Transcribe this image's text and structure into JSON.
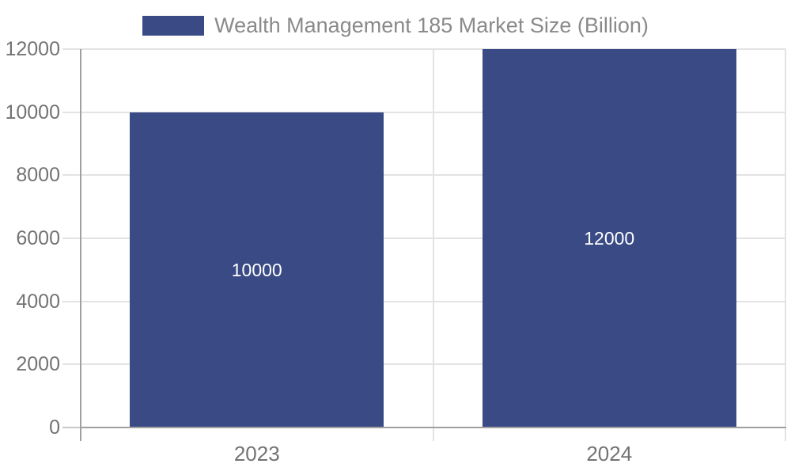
{
  "legend": {
    "label": "Wealth Management 185 Market Size (Billion)",
    "swatch_color": "#3A4A85"
  },
  "chart_data": {
    "type": "bar",
    "title": "Wealth Management 185 Market Size (Billion)",
    "categories": [
      "2023",
      "2024"
    ],
    "values": [
      10000,
      12000
    ],
    "bar_value_labels": [
      "10000",
      "12000"
    ],
    "xlabel": "",
    "ylabel": "",
    "ylim": [
      0,
      12000
    ],
    "yticks": [
      0,
      2000,
      4000,
      6000,
      8000,
      10000,
      12000
    ],
    "ytick_labels": [
      "0",
      "2000",
      "4000",
      "6000",
      "8000",
      "10000",
      "12000"
    ],
    "grid": true,
    "legend_position": "top-center",
    "bar_color": "#3A4A85",
    "value_label_color": "#FFFFFF"
  },
  "colors": {
    "background": "#FFFFFF",
    "bar": "#3A4A85",
    "gridline": "#E3E3E3",
    "axis_line": "#A0A0A0",
    "minor_tick": "#C8C8C8",
    "axis_tick_label": "#737373",
    "legend_text": "#8A8A8A"
  }
}
